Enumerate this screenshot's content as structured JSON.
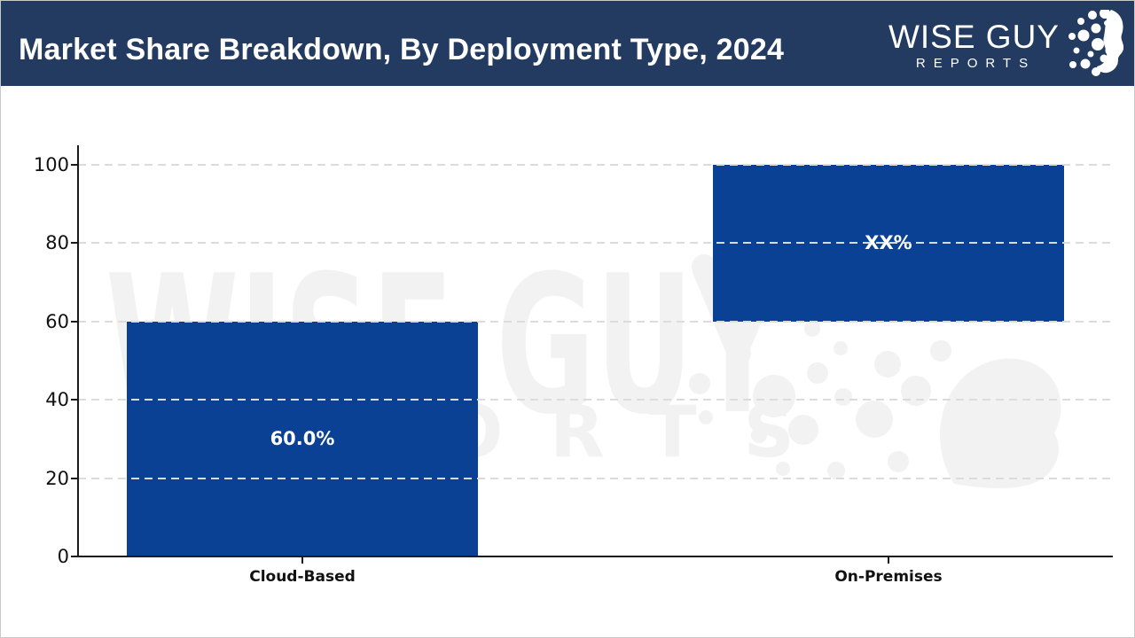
{
  "header": {
    "title": "Market Share Breakdown, By Deployment Type, 2024",
    "logo": {
      "line1": "WISE GUY",
      "line2": "REPORTS"
    }
  },
  "watermark": {
    "line1": "WISE GUY",
    "line2": "REPORTS"
  },
  "colors": {
    "header_bg": "#243B61",
    "bar": "#0A4195",
    "grid": "#DCDCDC",
    "axis": "#1A1A1A",
    "watermark": "#F2F2F2"
  },
  "chart_data": {
    "type": "bar",
    "title": "Market Share Breakdown, By Deployment Type, 2024",
    "categories": [
      "Cloud-Based",
      "On-Premises"
    ],
    "bars": [
      {
        "category": "Cloud-Based",
        "from": 0,
        "to": 60,
        "label": "60.0%"
      },
      {
        "category": "On-Premises",
        "from": 60,
        "to": 100,
        "label": "XX%"
      }
    ],
    "yticks": [
      0,
      20,
      40,
      60,
      80,
      100
    ],
    "ylim": [
      0,
      105
    ],
    "xlabel": "",
    "ylabel": "",
    "grid": "horizontal-dashed",
    "legend": null,
    "bar_color": "#0A4195",
    "value_label_position": "center-inside"
  }
}
